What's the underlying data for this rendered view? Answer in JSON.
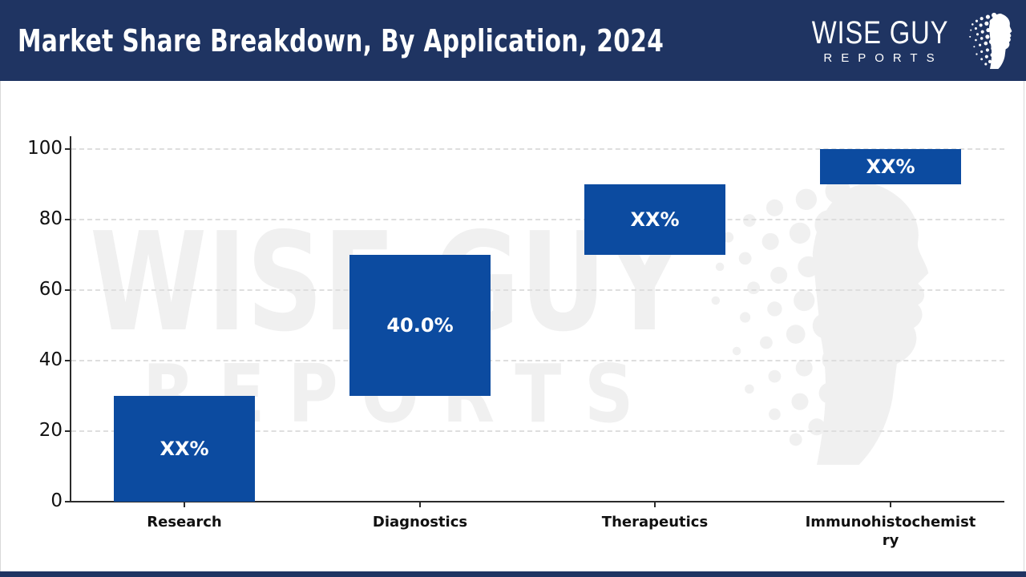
{
  "header": {
    "title": "Market Share Breakdown, By Application, 2024",
    "logo": {
      "line1": "WISE GUY",
      "line2": "REPORTS"
    }
  },
  "watermark": {
    "line1": "WISE GUY",
    "line2": "REPORTS"
  },
  "colors": {
    "header_bg": "#1f3462",
    "footer_bg": "#1f3462",
    "bar": "#0c4ba0",
    "grid": "#dedede",
    "axis": "#2b2b2b",
    "watermark": "#f0f0f0",
    "card_border": "#d9d9d9"
  },
  "chart_data": {
    "type": "bar",
    "subtype": "waterfall-floating-bars",
    "title": "Market Share Breakdown, By Application, 2024",
    "categories": [
      "Research",
      "Diagnostics",
      "Therapeutics",
      "Immunohistochemistry"
    ],
    "category_display_lines": [
      [
        "Research"
      ],
      [
        "Diagnostics"
      ],
      [
        "Therapeutics"
      ],
      [
        "Immunohistochemist",
        "ry"
      ]
    ],
    "segments": [
      {
        "category": "Research",
        "start": 0,
        "end": 30,
        "label": "XX%"
      },
      {
        "category": "Diagnostics",
        "start": 30,
        "end": 70,
        "label": "40.0%"
      },
      {
        "category": "Therapeutics",
        "start": 70,
        "end": 90,
        "label": "XX%"
      },
      {
        "category": "Immunohistochemistry",
        "start": 90,
        "end": 100,
        "label": "XX%"
      }
    ],
    "values": [
      30,
      40,
      20,
      10
    ],
    "xlabel": "",
    "ylabel": "",
    "ylim": [
      0,
      100
    ],
    "yticks": [
      0,
      20,
      40,
      60,
      80,
      100
    ],
    "grid": "horizontal-dashed",
    "legend": "none",
    "bar_color": "#0c4ba0"
  }
}
